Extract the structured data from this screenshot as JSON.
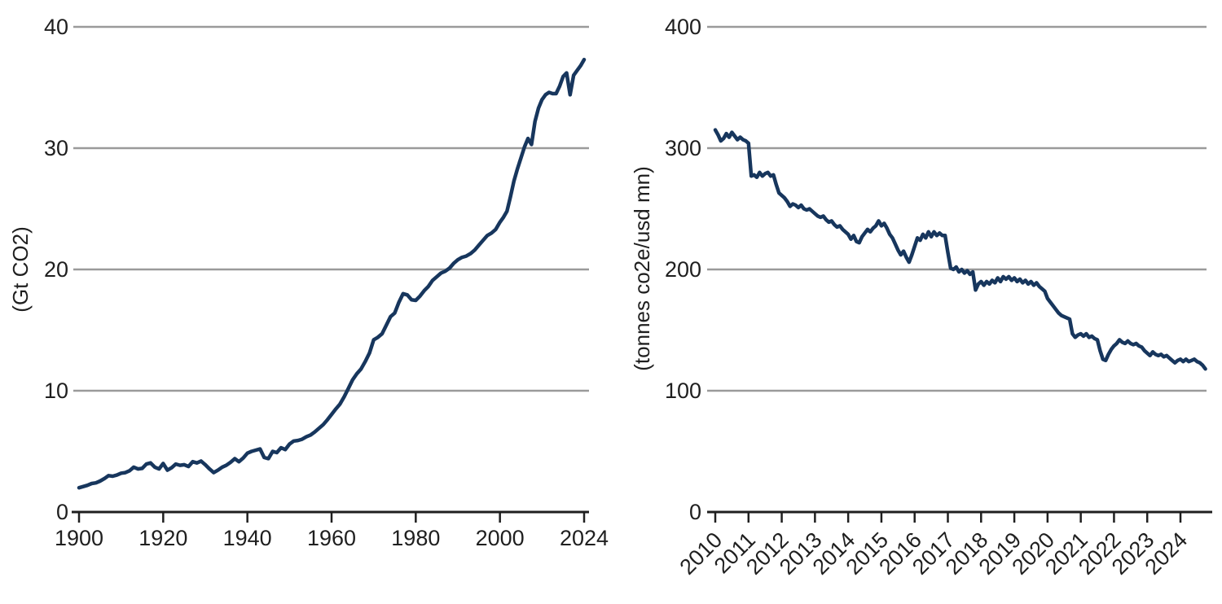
{
  "page": {
    "background_color": "#ffffff"
  },
  "chart_data": [
    {
      "id": "global-co2-emissions",
      "type": "line",
      "title": "",
      "ylabel": "(Gt CO2)",
      "xlabel": "",
      "ylim": [
        0,
        40
      ],
      "yticks": [
        0,
        10,
        20,
        30,
        40
      ],
      "xticks": [
        1900,
        1920,
        1940,
        1960,
        1980,
        2000,
        2024
      ],
      "xtick_rotation": 0,
      "grid": "horizontal",
      "legend": "none",
      "line_color": "#17365d",
      "grid_color": "#9a9a9a",
      "axis_color": "#1f1f1f",
      "text_color": "#1f1f1f",
      "x_start": 1900,
      "x_step": 1,
      "values": [
        2.0,
        2.1,
        2.2,
        2.35,
        2.4,
        2.55,
        2.75,
        3.0,
        2.95,
        3.05,
        3.2,
        3.25,
        3.4,
        3.7,
        3.55,
        3.6,
        3.95,
        4.05,
        3.7,
        3.55,
        4.0,
        3.45,
        3.65,
        3.95,
        3.85,
        3.9,
        3.75,
        4.15,
        4.05,
        4.2,
        3.9,
        3.55,
        3.25,
        3.45,
        3.7,
        3.85,
        4.1,
        4.4,
        4.15,
        4.45,
        4.85,
        5.0,
        5.1,
        5.2,
        4.5,
        4.4,
        5.0,
        4.9,
        5.3,
        5.15,
        5.6,
        5.85,
        5.9,
        6.0,
        6.2,
        6.35,
        6.6,
        6.9,
        7.2,
        7.6,
        8.05,
        8.5,
        8.9,
        9.5,
        10.2,
        10.9,
        11.4,
        11.8,
        12.4,
        13.1,
        14.2,
        14.4,
        14.7,
        15.4,
        16.1,
        16.4,
        17.3,
        18.0,
        17.9,
        17.5,
        17.45,
        17.8,
        18.25,
        18.6,
        19.1,
        19.4,
        19.7,
        19.85,
        20.1,
        20.5,
        20.8,
        21.0,
        21.1,
        21.3,
        21.6,
        22.0,
        22.4,
        22.8,
        23.0,
        23.3,
        23.9,
        24.3,
        24.8,
        26.0,
        27.3,
        28.3,
        29.2,
        30.1,
        30.8,
        30.3,
        32.2,
        33.3,
        34.0,
        34.4,
        34.6,
        34.5,
        34.5,
        35.1,
        35.9,
        36.2,
        34.4,
        36.0,
        36.4,
        36.8,
        37.3
      ]
    },
    {
      "id": "carbon-intensity",
      "type": "line",
      "title": "",
      "ylabel": "(tonnes co2e/usd mn)",
      "xlabel": "",
      "ylim": [
        0,
        400
      ],
      "yticks": [
        0,
        100,
        200,
        300,
        400
      ],
      "xticks": [
        2010,
        2011,
        2012,
        2013,
        2014,
        2015,
        2016,
        2017,
        2018,
        2019,
        2020,
        2021,
        2022,
        2023,
        2024
      ],
      "xtick_rotation": 45,
      "grid": "horizontal",
      "legend": "none",
      "line_color": "#17365d",
      "grid_color": "#9a9a9a",
      "axis_color": "#1f1f1f",
      "text_color": "#1f1f1f",
      "x_start": 2010,
      "x_step": 0.0833333,
      "values": [
        315,
        311,
        306,
        308,
        312,
        309,
        313,
        310,
        307,
        309,
        307,
        306,
        304,
        277,
        278,
        276,
        280,
        277,
        279,
        280,
        277,
        278,
        270,
        263,
        261,
        259,
        256,
        252,
        254,
        253,
        251,
        253,
        250,
        249,
        250,
        248,
        246,
        244,
        243,
        244,
        241,
        239,
        240,
        237,
        235,
        236,
        233,
        231,
        229,
        225,
        228,
        223,
        222,
        227,
        230,
        233,
        231,
        234,
        236,
        240,
        236,
        238,
        234,
        229,
        226,
        221,
        216,
        212,
        215,
        210,
        206,
        212,
        219,
        226,
        224,
        229,
        226,
        231,
        227,
        231,
        228,
        230,
        228,
        228,
        214,
        201,
        200,
        202,
        198,
        200,
        197,
        199,
        196,
        198,
        183,
        188,
        190,
        187,
        190,
        188,
        191,
        189,
        193,
        190,
        194,
        192,
        194,
        191,
        193,
        190,
        192,
        189,
        191,
        188,
        190,
        187,
        189,
        186,
        184,
        182,
        176,
        173,
        170,
        167,
        164,
        162,
        161,
        160,
        159,
        147,
        144,
        146,
        147,
        145,
        147,
        144,
        145,
        143,
        142,
        133,
        126,
        125,
        130,
        134,
        137,
        139,
        142,
        140,
        139,
        141,
        139,
        138,
        139,
        137,
        136,
        133,
        131,
        129,
        132,
        130,
        129,
        130,
        128,
        129,
        127,
        125,
        123,
        125,
        126,
        124,
        126,
        124,
        125,
        126,
        124,
        123,
        121,
        118
      ]
    }
  ]
}
